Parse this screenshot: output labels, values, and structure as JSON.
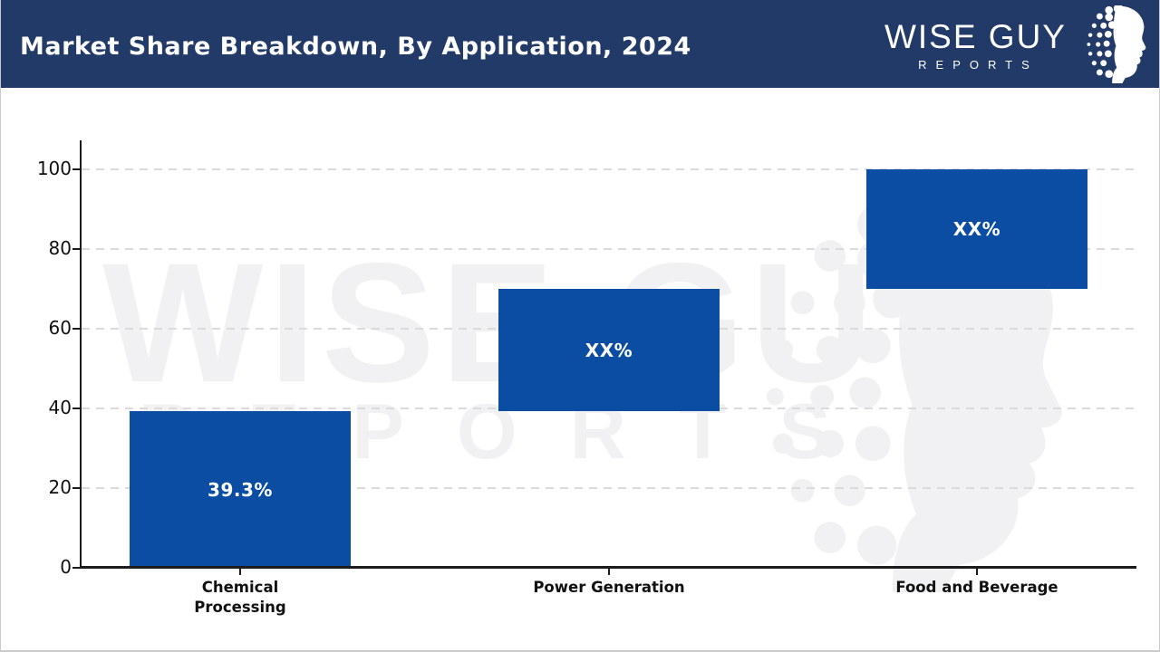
{
  "header": {
    "title": "Market Share Breakdown, By Application, 2024",
    "logo": {
      "name": "WISE GUY",
      "subname": "REPORTS"
    }
  },
  "watermark": {
    "line1": "WISE GUY",
    "line2": "REPORTS"
  },
  "chart_data": {
    "type": "bar",
    "variant": "floating-waterfall",
    "title": "Market Share Breakdown, By Application, 2024",
    "categories": [
      "Chemical Processing",
      "Power Generation",
      "Food and Beverage"
    ],
    "tick_labels": [
      "Chemical\nProcessing",
      "Power Generation",
      "Food and Beverage"
    ],
    "series": [
      {
        "name": "Market share (%)",
        "segments": [
          {
            "category": "Chemical Processing",
            "start": 0,
            "end": 39.3,
            "label": "39.3%"
          },
          {
            "category": "Power Generation",
            "start": 39.3,
            "end": 70,
            "label": "XX%"
          },
          {
            "category": "Food and Beverage",
            "start": 70,
            "end": 100,
            "label": "XX%"
          }
        ]
      }
    ],
    "xlabel": "",
    "ylabel": "",
    "yticks": [
      0,
      20,
      40,
      60,
      80,
      100
    ],
    "ylim": [
      0,
      107
    ],
    "grid": "horizontal-dashed",
    "legend": "none",
    "bar_color": "#0B4DA2",
    "value_label_color": "#FFFFFF"
  },
  "colors": {
    "header_bg": "#223A68",
    "bar": "#0B4DA2",
    "axis": "#1C1C1C",
    "gridline": "#DBDBDB",
    "watermark": "#F1F1F3",
    "text": "#111111",
    "page_border": "#CBCBCB"
  }
}
